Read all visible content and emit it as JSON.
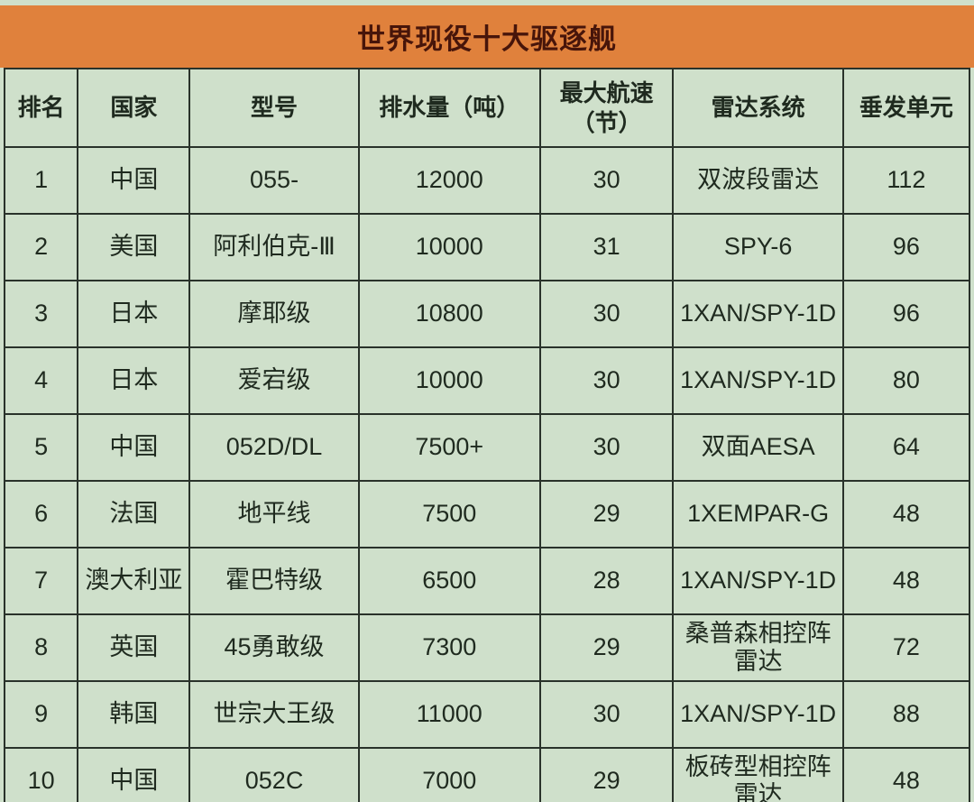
{
  "title": {
    "text": "世界现役十大驱逐舰",
    "bar_color": "#e0813c",
    "text_color": "#47150a"
  },
  "colors": {
    "page_background": "#cfe0cb",
    "cell_background": "#cfe0cb",
    "border": "#29322a",
    "cell_text": "#1f2a1f"
  },
  "table": {
    "headers": [
      "排名",
      "国家",
      "型号",
      "排水量（吨）",
      "最大航速（节）",
      "雷达系统",
      "垂发单元"
    ],
    "rows": [
      [
        "1",
        "中国",
        "055-",
        "12000",
        "30",
        "双波段雷达",
        "112"
      ],
      [
        "2",
        "美国",
        "阿利伯克-Ⅲ",
        "10000",
        "31",
        "SPY-6",
        "96"
      ],
      [
        "3",
        "日本",
        "摩耶级",
        "10800",
        "30",
        "1XAN/SPY-1D",
        "96"
      ],
      [
        "4",
        "日本",
        "爱宕级",
        "10000",
        "30",
        "1XAN/SPY-1D",
        "80"
      ],
      [
        "5",
        "中国",
        "052D/DL",
        "7500+",
        "30",
        "双面AESA",
        "64"
      ],
      [
        "6",
        "法国",
        "地平线",
        "7500",
        "29",
        "1XEMPAR-G",
        "48"
      ],
      [
        "7",
        "澳大利亚",
        "霍巴特级",
        "6500",
        "28",
        "1XAN/SPY-1D",
        "48"
      ],
      [
        "8",
        "英国",
        "45勇敢级",
        "7300",
        "29",
        "桑普森相控阵雷达",
        "72"
      ],
      [
        "9",
        "韩国",
        "世宗大王级",
        "11000",
        "30",
        "1XAN/SPY-1D",
        "88"
      ],
      [
        "10",
        "中国",
        "052C",
        "7000",
        "29",
        "板砖型相控阵雷达",
        "48"
      ]
    ]
  }
}
